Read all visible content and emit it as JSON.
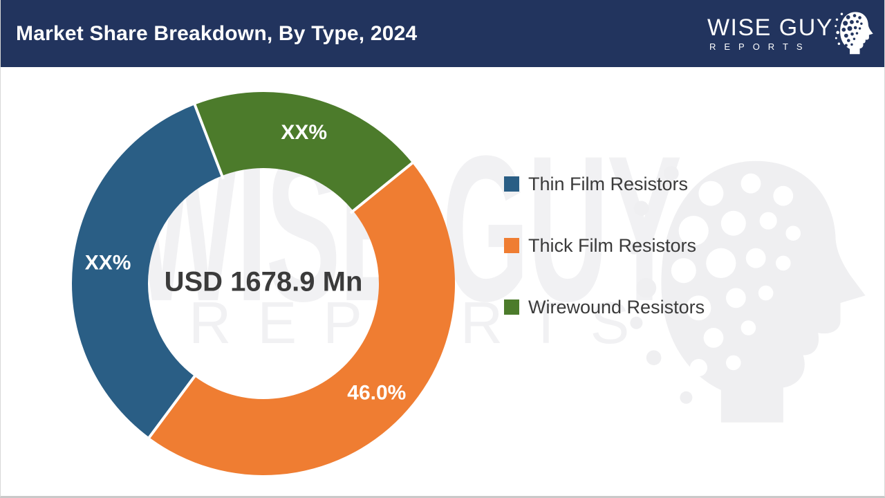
{
  "header": {
    "title": "Market Share Breakdown, By Type, 2024",
    "bg_color": "#22345E",
    "logo": {
      "line1": "WISE GUY",
      "line2": "REPORTS"
    }
  },
  "watermark": {
    "text_top": "WISE GUY",
    "text_bottom": "REPORTS"
  },
  "chart_data": {
    "type": "pie",
    "subtype": "donut",
    "title": "Market Share Breakdown, By Type, 2024",
    "center_label": "USD 1678.9 Mn",
    "legend_position": "right",
    "start_angle_clock_deg": -21,
    "categories": [
      "Thin Film Resistors",
      "Thick Film Resistors",
      "Wirewound Resistors"
    ],
    "values_pct": [
      34,
      46,
      20
    ],
    "display_labels": [
      "XX%",
      "46.0%",
      "XX%"
    ],
    "colors": [
      "#2A5E85",
      "#EF7D32",
      "#4C7B2B"
    ]
  }
}
